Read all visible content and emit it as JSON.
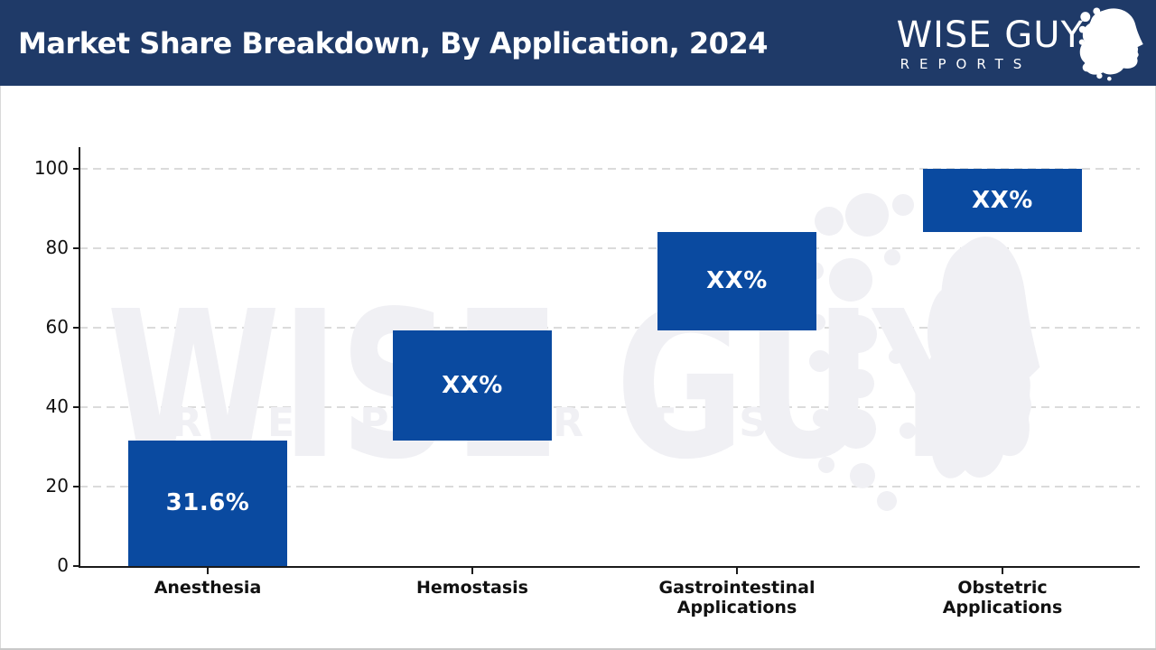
{
  "header": {
    "title": "Market Share Breakdown, By Application, 2024",
    "logo": {
      "name": "WISE GUY",
      "tagline": "REPORTS"
    }
  },
  "watermark": {
    "line1": "WISE GUY",
    "line2": "REPORTS"
  },
  "chart_data": {
    "type": "bar",
    "subtype": "waterfall-stacked-breakdown",
    "title": "Market Share Breakdown, By Application, 2024",
    "categories": [
      "Anesthesia",
      "Hemostasis",
      "Gastrointestinal\nApplications",
      "Obstetric\nApplications"
    ],
    "segments": [
      [
        0,
        31.6
      ],
      [
        31.6,
        59.3
      ],
      [
        59.3,
        84.2
      ],
      [
        84.2,
        100
      ]
    ],
    "values": [
      31.6,
      27.7,
      24.9,
      15.8
    ],
    "bar_labels": [
      "31.6%",
      "XX%",
      "XX%",
      "XX%"
    ],
    "yticks": [
      0,
      20,
      40,
      60,
      80,
      100
    ],
    "ylim": [
      0,
      105
    ],
    "xlabel": "",
    "ylabel": "",
    "grid": "horizontal-dashed",
    "legend": "none"
  },
  "colors": {
    "header_bg": "#1F3A68",
    "bar": "#0A4AA0",
    "bar_label": "#FFFFFF",
    "watermark": "#F0F0F4",
    "grid": "#DBDBDB",
    "axis": "#1A1A1A",
    "text": "#111111"
  }
}
